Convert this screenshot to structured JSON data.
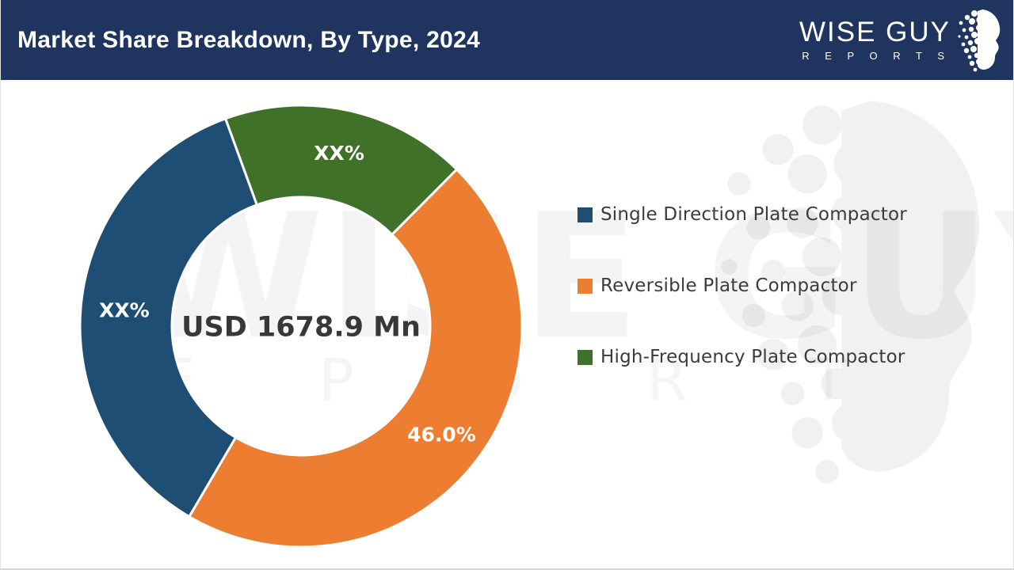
{
  "header": {
    "title": "Market Share Breakdown, By Type, 2024",
    "logo": {
      "wordmark": "WISE GUY",
      "subtext": "R E P O R T S"
    }
  },
  "colors": {
    "header_bg": "#1F345E",
    "blue": "#1F4E74",
    "orange": "#ED7D31",
    "green": "#3F7128",
    "center_text": "#383838",
    "legend_text": "#3B3B3B"
  },
  "chart_data": {
    "type": "pie",
    "subtype": "donut",
    "title": "Market Share Breakdown, By Type, 2024",
    "center_label": "USD 1678.9 Mn",
    "legend_position": "right",
    "start_angle_deg": -20,
    "segments": [
      {
        "name": "High-Frequency Plate Compactor",
        "slice_label": "XX%",
        "value_pct": 18,
        "color": "#3F7128",
        "label_shown": "placeholder"
      },
      {
        "name": "Reversible Plate Compactor",
        "slice_label": "46.0%",
        "value_pct": 46,
        "color": "#ED7D31",
        "label_shown": "value"
      },
      {
        "name": "Single Direction Plate Compactor",
        "slice_label": "XX%",
        "value_pct": 36,
        "color": "#1F4E74",
        "label_shown": "placeholder"
      }
    ],
    "notes": "XX% slices are masked placeholders; angular sizes estimated from pixels. Only 46.0% is printed."
  },
  "legend": {
    "items": [
      {
        "label": "Single Direction Plate Compactor",
        "color": "#1F4E74"
      },
      {
        "label": "Reversible Plate Compactor",
        "color": "#ED7D31"
      },
      {
        "label": "High-Frequency Plate Compactor",
        "color": "#3F7128"
      }
    ]
  },
  "watermark": {
    "wordmark": "WISE GUY",
    "subtext": "E P O R T"
  }
}
